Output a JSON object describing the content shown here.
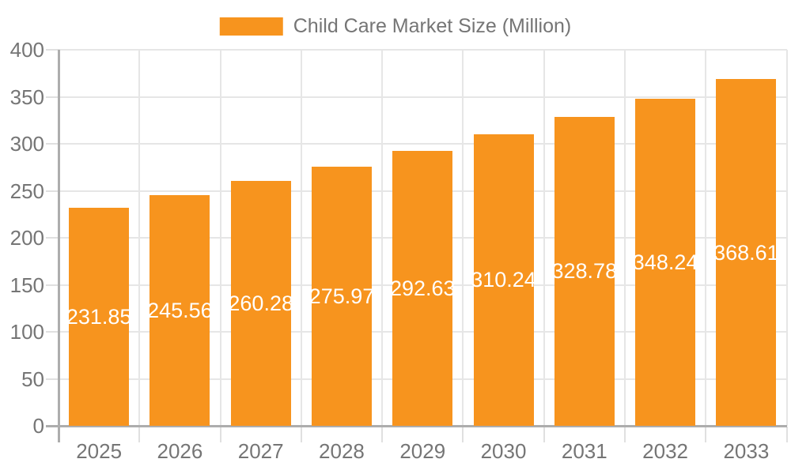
{
  "legend": {
    "label": "Child Care Market Size (Million)"
  },
  "chart_data": {
    "type": "bar",
    "title": "",
    "categories": [
      "2025",
      "2026",
      "2027",
      "2028",
      "2029",
      "2030",
      "2031",
      "2032",
      "2033"
    ],
    "values": [
      231.85,
      245.56,
      260.28,
      275.97,
      292.63,
      310.24,
      328.78,
      348.24,
      368.61
    ],
    "series": [
      {
        "name": "Child Care Market Size (Million)",
        "values": [
          231.85,
          245.56,
          260.28,
          275.97,
          292.63,
          310.24,
          328.78,
          348.24,
          368.61
        ]
      }
    ],
    "data_labels": [
      "231.85",
      "245.56",
      "260.28",
      "275.97",
      "292.63",
      "310.24",
      "328.78",
      "348.24",
      "368.61"
    ],
    "xlabel": "",
    "ylabel": "",
    "ylim": [
      0,
      400
    ],
    "ytick_interval": 50,
    "yticks": [
      0,
      50,
      100,
      150,
      200,
      250,
      300,
      350,
      400
    ],
    "grid": true,
    "legend_position": "top-center"
  },
  "colors": {
    "bar": "#F7941E",
    "bar_label": "#FFFFFF",
    "axis_line": "#ADADAD",
    "grid_line": "#E6E6E6",
    "tick": "#E0E0E0",
    "text": "#757575",
    "background": "#FFFFFF"
  }
}
